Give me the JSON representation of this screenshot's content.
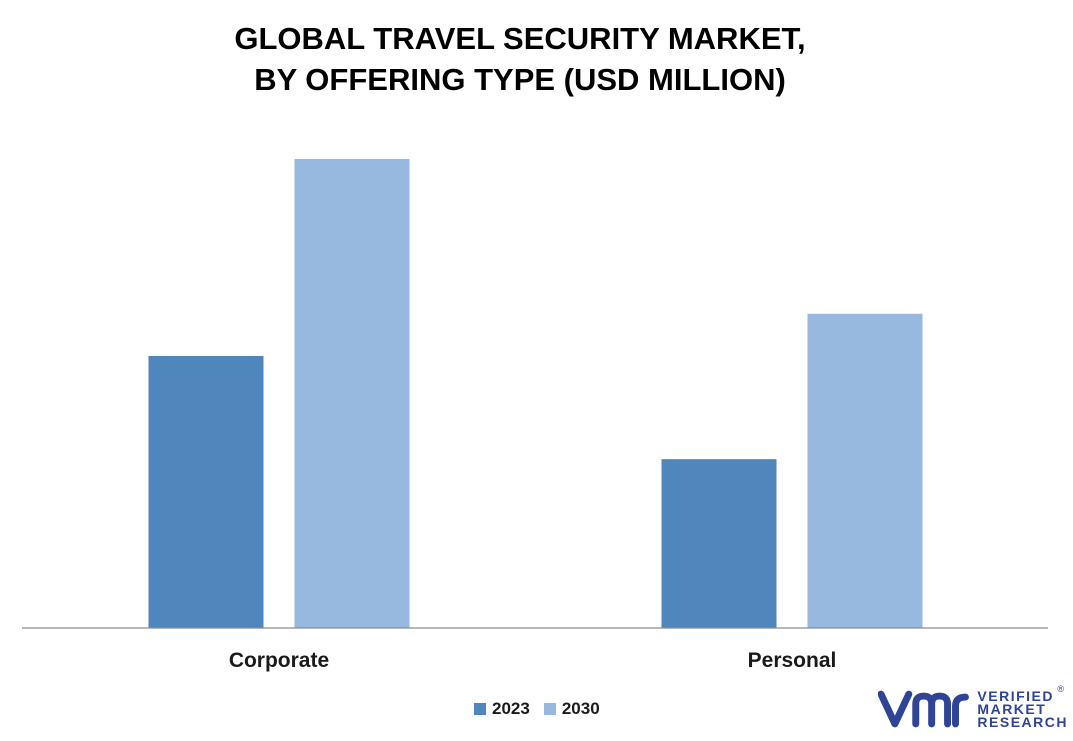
{
  "chart_data": {
    "type": "bar",
    "title_lines": [
      "GLOBAL TRAVEL SECURITY MARKET,",
      "BY OFFERING TYPE (USD MILLION)"
    ],
    "categories": [
      "Corporate",
      "Personal"
    ],
    "series": [
      {
        "name": "2023",
        "values": [
          58,
          36
        ],
        "color": "#4f87bd"
      },
      {
        "name": "2030",
        "values": [
          100,
          67
        ],
        "color": "#98b9df"
      }
    ],
    "ylim": [
      0,
      100
    ],
    "grid": false,
    "legend": "bottom-center"
  },
  "branding": {
    "logo_icon": "vmr-logo-icon",
    "logo_lines": [
      "VERIFIED",
      "MARKET",
      "RESEARCH"
    ],
    "registered_mark": "®",
    "color": "#2f4496"
  }
}
